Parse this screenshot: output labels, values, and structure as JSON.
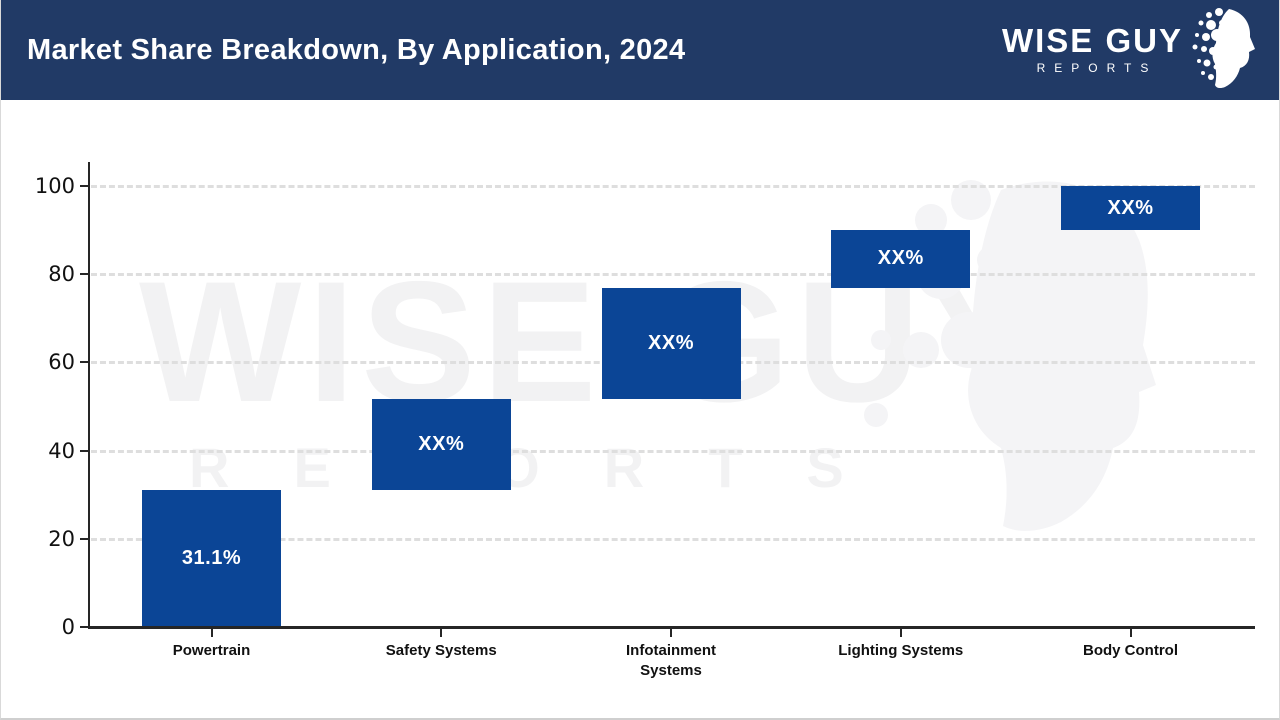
{
  "header": {
    "title": "Market Share Breakdown, By Application, 2024",
    "logo": {
      "line1": "WISE GUY",
      "line2": "REPORTS"
    }
  },
  "watermark": {
    "line1": "WISE GUY",
    "line2": "REPORTS"
  },
  "colors": {
    "header_bg": "#213a66",
    "bar": "#0b4596",
    "watermark": "#f2f2f3",
    "gridline": "#dedede",
    "axis": "#262626"
  },
  "chart_data": {
    "type": "bar",
    "subtype": "waterfall",
    "title": "Market Share Breakdown, By Application, 2024",
    "categories": [
      "Powertrain",
      "Safety Systems",
      "Infotainment Systems",
      "Lighting Systems",
      "Body Control"
    ],
    "segments": [
      {
        "category": "Powertrain",
        "start": 0,
        "end": 31.1,
        "label": "31.1%"
      },
      {
        "category": "Safety Systems",
        "start": 31.1,
        "end": 51.7,
        "label": "XX%"
      },
      {
        "category": "Infotainment Systems",
        "start": 51.7,
        "end": 76.9,
        "label": "XX%"
      },
      {
        "category": "Lighting Systems",
        "start": 76.9,
        "end": 90,
        "label": "XX%"
      },
      {
        "category": "Body Control",
        "start": 90,
        "end": 100,
        "label": "XX%"
      }
    ],
    "yticks": [
      0,
      20,
      40,
      60,
      80,
      100
    ],
    "ylim": [
      0,
      105
    ],
    "xlabel": "",
    "ylabel": "",
    "grid": "horizontal-dashed",
    "legend": "none",
    "bar_color": "#0b4596"
  }
}
